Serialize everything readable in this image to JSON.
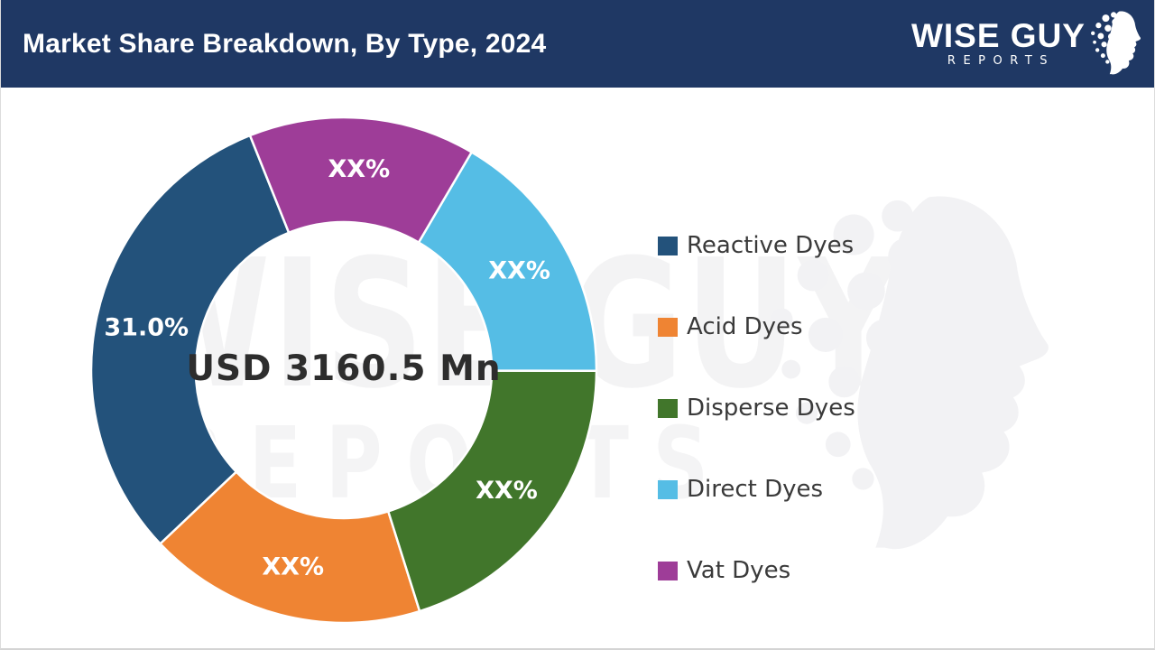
{
  "header": {
    "title": "Market Share Breakdown, By Type, 2024",
    "bg_color": "#1f3864",
    "logo": {
      "line1": "WISE GUY",
      "line2": "REPORTS"
    }
  },
  "watermark": {
    "line1": "WISE GUY",
    "line2": "REPORTS"
  },
  "chart_data": {
    "type": "pie",
    "subtype": "donut",
    "title": "Market Share Breakdown, By Type, 2024",
    "center_label": "USD 3160.5 Mn",
    "start_angle_deg": 111.8,
    "direction": "counterclockwise",
    "outer_radius_px": 280,
    "inner_radius_px": 164,
    "legend_position": "right",
    "segments": [
      {
        "label": "Reactive Dyes",
        "value_pct": 31.0,
        "display_label": "31.0%",
        "color": "#23527b"
      },
      {
        "label": "Acid Dyes",
        "value_pct": 17.8,
        "display_label": "XX%",
        "color": "#ef8433"
      },
      {
        "label": "Disperse Dyes",
        "value_pct": 20.1,
        "display_label": "XX%",
        "color": "#41762b"
      },
      {
        "label": "Direct Dyes",
        "value_pct": 16.6,
        "display_label": "XX%",
        "color": "#55bde5"
      },
      {
        "label": "Vat Dyes",
        "value_pct": 14.5,
        "display_label": "XX%",
        "color": "#9e3d98"
      }
    ]
  }
}
